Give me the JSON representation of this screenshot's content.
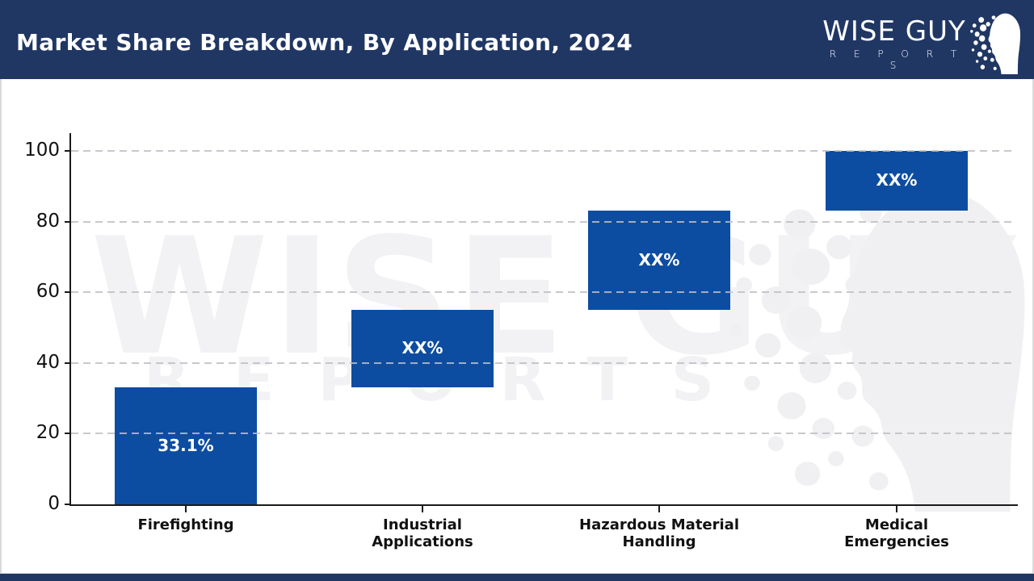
{
  "header": {
    "title": "Market Share Breakdown, By Application, 2024",
    "bg_color": "#203764",
    "logo": {
      "line1": "WISE GUY",
      "line2": "R E P O R T S"
    }
  },
  "watermark": {
    "line1": "WISE GUY",
    "line2": "REPORTS"
  },
  "footer": {
    "bg_color": "#203764"
  },
  "chart_data": {
    "type": "bar",
    "subtype": "floating-segment (waterfall-style market share)",
    "title": "Market Share Breakdown, By Application, 2024",
    "categories": [
      "Firefighting",
      "Industrial Applications",
      "Hazardous Material Handling",
      "Medical Emergencies"
    ],
    "categories_lines": [
      [
        "Firefighting"
      ],
      [
        "Industrial",
        "Applications"
      ],
      [
        "Hazardous Material",
        "Handling"
      ],
      [
        "Medical",
        "Emergencies"
      ]
    ],
    "segments": [
      {
        "category": "Firefighting",
        "from": 0,
        "to": 33.1,
        "label": "33.1%"
      },
      {
        "category": "Industrial Applications",
        "from": 33.1,
        "to": 55,
        "label": "XX%"
      },
      {
        "category": "Hazardous Material Handling",
        "from": 55,
        "to": 83,
        "label": "XX%"
      },
      {
        "category": "Medical Emergencies",
        "from": 83,
        "to": 100,
        "label": "XX%"
      }
    ],
    "xlabel": "",
    "ylabel": "",
    "ylim": [
      0,
      100
    ],
    "yticks": [
      0,
      20,
      40,
      60,
      80,
      100
    ],
    "grid": "horizontal dashed, drawn over bars",
    "legend": "none",
    "bar_color": "#0d4da1",
    "bar_label_color": "#ffffff",
    "axis_color": "#1a1a1a",
    "gridline_color": "#d8d8d8"
  }
}
